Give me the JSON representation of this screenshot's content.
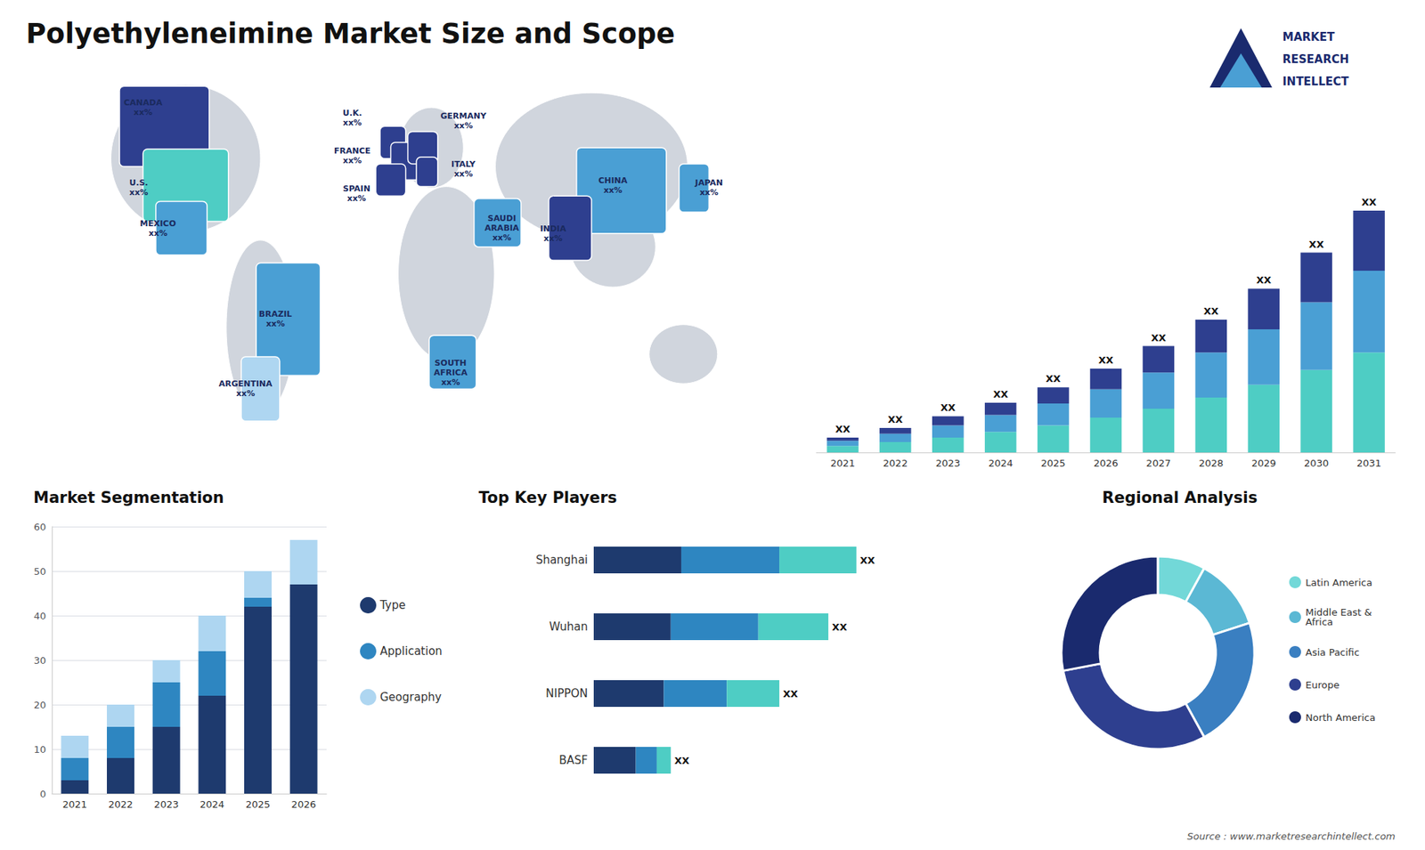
{
  "chart_data": [
    {
      "type": "bar",
      "title": "Polyethyleneimine Market Size and Scope",
      "categories": [
        "2021",
        "2022",
        "2023",
        "2024",
        "2025",
        "2026",
        "2027",
        "2028",
        "2029",
        "2030",
        "2031"
      ],
      "stacked": true,
      "series": [
        {
          "color": "#4ecdc4",
          "values": [
            1.0,
            1.6,
            2.3,
            3.2,
            4.2,
            5.4,
            6.8,
            8.5,
            10.5,
            12.8,
            15.5
          ]
        },
        {
          "color": "#4a9fd4",
          "values": [
            0.8,
            1.3,
            1.9,
            2.6,
            3.4,
            4.4,
            5.6,
            7.0,
            8.6,
            10.5,
            12.7
          ]
        },
        {
          "color": "#2e3f8f",
          "values": [
            0.5,
            0.9,
            1.4,
            1.9,
            2.5,
            3.2,
            4.1,
            5.1,
            6.3,
            7.7,
            9.3
          ],
          "value_labels": [
            "XX",
            "XX",
            "XX",
            "XX",
            "XX",
            "XX",
            "XX",
            "XX",
            "XX",
            "XX",
            "XX"
          ]
        }
      ],
      "ylim": [
        0,
        50.625
      ],
      "tick_labels": "x",
      "grid": false,
      "annotations": [
        "MARKET",
        "RESEARCH",
        "INTELLECT",
        "Source : www.marketresearchintellect.com"
      ]
    },
    {
      "type": "map",
      "annotations": [
        "CANADA\nxx%",
        "U.S.\nxx%",
        "MEXICO\nxx%",
        "BRAZIL\nxx%",
        "ARGENTINA\nxx%",
        "U.K.\nxx%",
        "FRANCE\nxx%",
        "GERMANY\nxx%",
        "SPAIN\nxx%",
        "ITALY\nxx%",
        "SAUDI\nARABIA\nxx%",
        "SOUTH\nAFRICA\nxx%",
        "CHINA\nxx%",
        "INDIA\nxx%",
        "JAPAN\nxx%"
      ],
      "colors": [
        "#2e3f8f",
        "#4ecdc4",
        "#4a9fd4",
        "#4a9fd4",
        "#aed6f1",
        "#2e3f8f",
        "#2e3f8f",
        "#2e3f8f",
        "#2e3f8f",
        "#2e3f8f",
        "#4a9fd4",
        "#4a9fd4",
        "#4a9fd4",
        "#2e3f8f",
        "#4a9fd4"
      ]
    },
    {
      "type": "bar",
      "title": "Market Segmentation",
      "categories": [
        "2021",
        "2022",
        "2023",
        "2024",
        "2025",
        "2026"
      ],
      "stacked": true,
      "series": [
        {
          "name": "Type",
          "color": "#1e3a6e",
          "values": [
            3,
            8,
            15,
            22,
            42,
            47
          ]
        },
        {
          "name": "Application",
          "color": "#2e86c1",
          "values": [
            5,
            7,
            10,
            10,
            2,
            0
          ]
        },
        {
          "name": "Geography",
          "color": "#aed6f1",
          "values": [
            5,
            5,
            5,
            8,
            6,
            10
          ]
        }
      ],
      "ylim": [
        0,
        60
      ],
      "yticks": [
        0,
        10,
        20,
        30,
        40,
        50,
        60
      ],
      "grid": true,
      "legend": "right"
    },
    {
      "type": "bar",
      "orientation": "horizontal",
      "title": "Top Key Players",
      "categories": [
        "Shanghai",
        "Wuhan",
        "NIPPON",
        "BASF"
      ],
      "stacked": true,
      "series": [
        {
          "color": "#1e3a6e",
          "values": [
            0.25,
            0.22,
            0.2,
            0.12
          ]
        },
        {
          "color": "#2e86c1",
          "values": [
            0.28,
            0.25,
            0.18,
            0.06
          ]
        },
        {
          "color": "#4ecdc4",
          "values": [
            0.22,
            0.2,
            0.15,
            0.04
          ],
          "value_labels": [
            "XX",
            "XX",
            "XX",
            "XX"
          ]
        }
      ],
      "xlim": [
        0,
        0.975
      ],
      "tick_labels": "y",
      "grid": false
    },
    {
      "type": "pie",
      "title": "Regional Analysis",
      "categories": [
        "Latin America",
        "Middle East &\nAfrica",
        "Asia Pacific",
        "Europe",
        "North America"
      ],
      "values": [
        0.08,
        0.12,
        0.22,
        0.3,
        0.28
      ],
      "colors": [
        "#72d8d8",
        "#5bb8d4",
        "#3a7fc1",
        "#2e3f8f",
        "#1a2a6e"
      ],
      "legend": "right"
    }
  ]
}
